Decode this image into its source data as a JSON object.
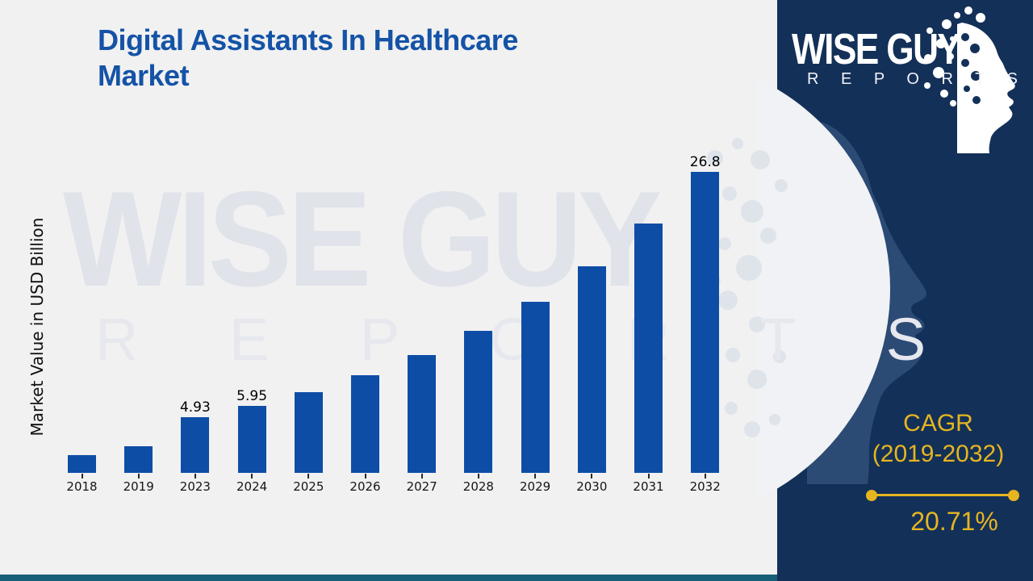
{
  "title": "Digital Assistants In Healthcare Market",
  "watermark": {
    "line1": "WISE GUY",
    "line2": "R E P O R T S"
  },
  "logo": {
    "line1": "WISE GUY",
    "line2": "R E P O R T S"
  },
  "cagr": {
    "label": "CAGR",
    "range": "(2019-2032)",
    "value": "20.71%"
  },
  "colors": {
    "bar": "#0d4da6",
    "title": "#1453a6",
    "panel_navy": "#133058",
    "face_blue": "#2b4b75",
    "gold": "#e6b51f",
    "teal_strip": "#175f78",
    "background": "#f1f1f2"
  },
  "chart_data": {
    "type": "bar",
    "title": "Digital Assistants In Healthcare Market",
    "xlabel": "",
    "ylabel": "Market Value in USD Billion",
    "categories": [
      "2018",
      "2019",
      "2023",
      "2024",
      "2025",
      "2026",
      "2027",
      "2028",
      "2029",
      "2030",
      "2031",
      "2032"
    ],
    "values": [
      1.58,
      2.37,
      4.93,
      5.95,
      7.18,
      8.67,
      10.47,
      12.64,
      15.26,
      18.42,
      22.2,
      26.8
    ],
    "data_labels": [
      "",
      "",
      "4.93",
      "5.95",
      "",
      "",
      "",
      "",
      "",
      "",
      "",
      "26.8"
    ],
    "ylim": [
      0,
      28
    ],
    "grid": false,
    "legend": "none",
    "bar_color": "#0d4da6"
  }
}
